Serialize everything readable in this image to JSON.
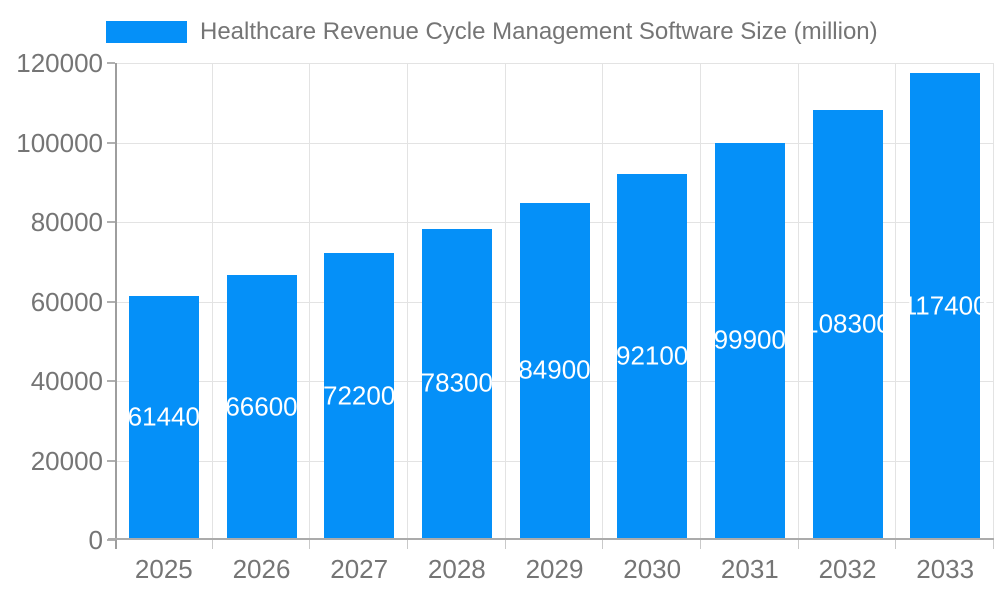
{
  "chart_data": {
    "type": "bar",
    "title": "Healthcare Revenue Cycle Management Software Size (million)",
    "categories": [
      "2025",
      "2026",
      "2027",
      "2028",
      "2029",
      "2030",
      "2031",
      "2032",
      "2033"
    ],
    "series": [
      {
        "name": "Healthcare Revenue Cycle Management Software Size (million)",
        "values": [
          61440,
          66600,
          72200,
          78300,
          84900,
          92100,
          99900,
          108300,
          117400
        ]
      }
    ],
    "xlabel": "",
    "ylabel": "",
    "ylim": [
      0,
      120000
    ],
    "yticks": [
      0,
      20000,
      40000,
      60000,
      80000,
      100000,
      120000
    ],
    "grid": true,
    "legend_position": "top-left",
    "bar_value_labels": true
  },
  "colors": {
    "bar": "#0590f8",
    "bar_label_text": "#ffffff",
    "axis_text": "#757575",
    "grid_line": "#e3e3e3",
    "axis_line": "#9e9e9e"
  }
}
